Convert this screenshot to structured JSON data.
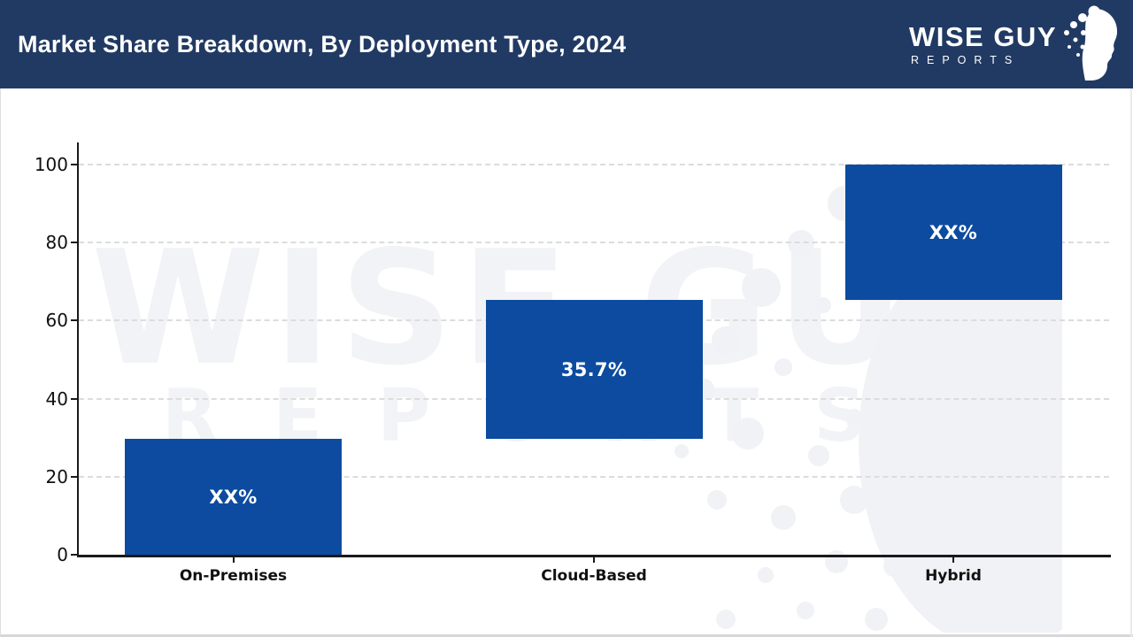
{
  "header": {
    "title": "Market Share Breakdown, By Deployment Type, 2024",
    "logo": {
      "line1": "WISE GUY",
      "line2": "REPORTS"
    }
  },
  "watermark": {
    "line1": "WISE GUY",
    "line2": "REPORTS"
  },
  "colors": {
    "header_bg": "#213a63",
    "bar": "#0c4ba0",
    "grid": "#dcdcdc",
    "axis": "#1a1a1a",
    "bar_label": "#ffffff",
    "watermark": "#f2f3f6"
  },
  "chart_data": {
    "type": "bar",
    "subtype": "waterfall",
    "title": "Market Share Breakdown, By Deployment Type, 2024",
    "categories": [
      "On-Premises",
      "Cloud-Based",
      "Hybrid"
    ],
    "values": [
      29.6,
      35.7,
      34.7
    ],
    "labels": [
      "XX%",
      "35.7%",
      "XX%"
    ],
    "segments": [
      {
        "category": "On-Premises",
        "start": 0,
        "end": 29.6,
        "label": "XX%"
      },
      {
        "category": "Cloud-Based",
        "start": 29.6,
        "end": 65.3,
        "label": "35.7%"
      },
      {
        "category": "Hybrid",
        "start": 65.3,
        "end": 100,
        "label": "XX%"
      }
    ],
    "xlabel": "",
    "ylabel": "",
    "ylim": [
      0,
      100
    ],
    "yticks": [
      0,
      20,
      40,
      60,
      80,
      100
    ],
    "grid": "horizontal-dashed",
    "legend": "none"
  }
}
